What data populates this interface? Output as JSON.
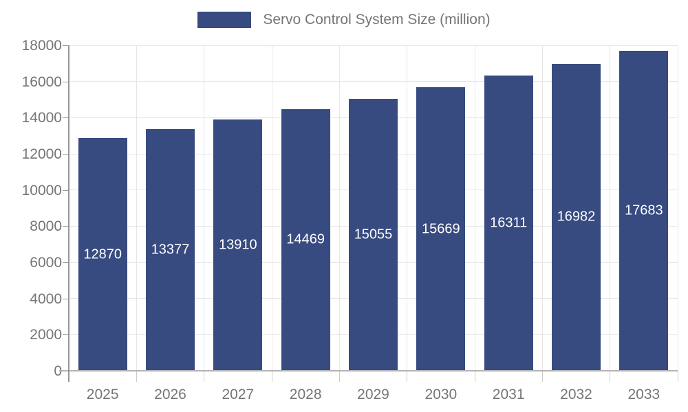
{
  "legend": {
    "label": "Servo Control System Size (million)"
  },
  "chart_data": {
    "type": "bar",
    "title": "",
    "series_name": "Servo Control System Size (million)",
    "categories": [
      "2025",
      "2026",
      "2027",
      "2028",
      "2029",
      "2030",
      "2031",
      "2032",
      "2033"
    ],
    "values": [
      12870,
      13377,
      13910,
      14469,
      15055,
      15669,
      16311,
      16982,
      17683
    ],
    "xlabel": "",
    "ylabel": "",
    "ylim": [
      0,
      18000
    ],
    "ytick_step": 2000,
    "ytick_labels": [
      "0",
      "2000",
      "4000",
      "6000",
      "8000",
      "10000",
      "12000",
      "14000",
      "16000",
      "18000"
    ],
    "grid": true,
    "legend_position": "top-center",
    "bar_color": "#384B80",
    "bar_label_color": "#ffffff",
    "axis_text_color": "#757575",
    "gridline_color": "#e6e6e6"
  }
}
